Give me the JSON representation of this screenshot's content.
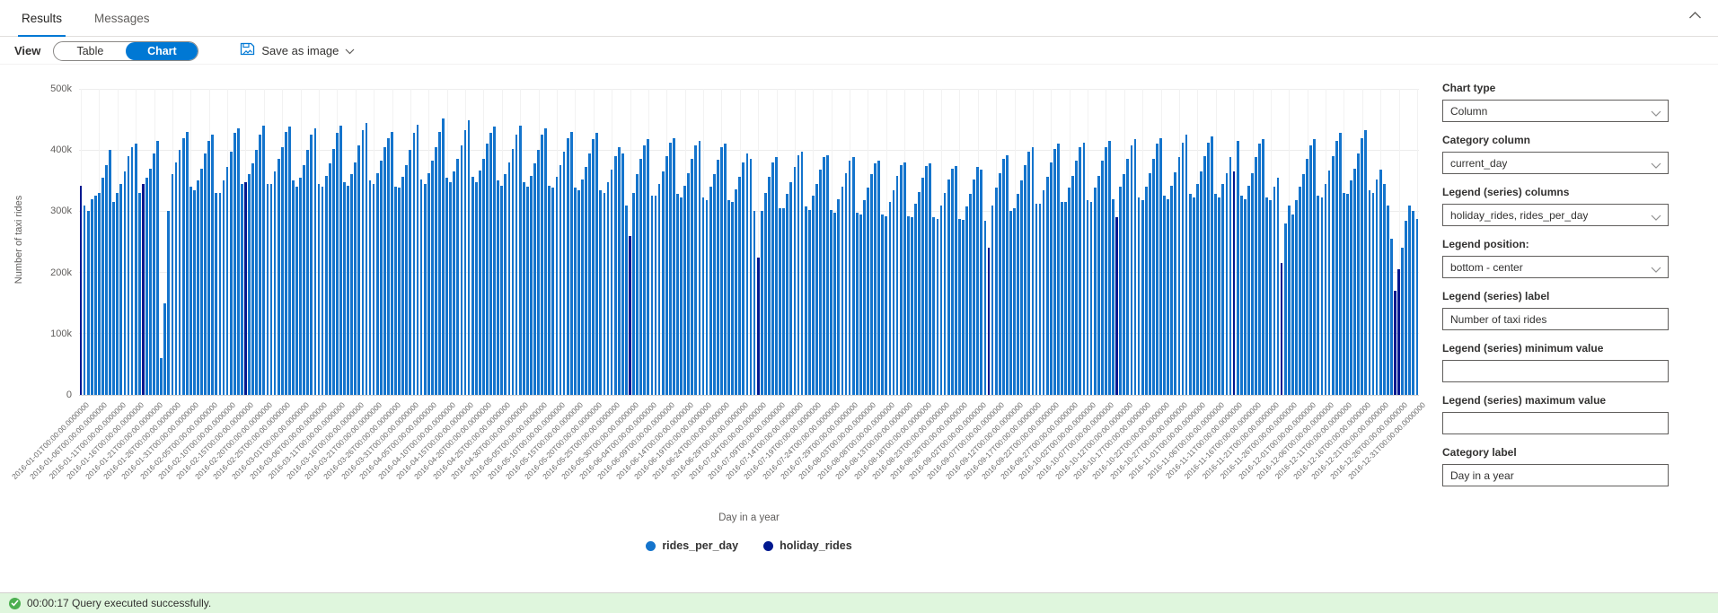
{
  "tabs": {
    "results": "Results",
    "messages": "Messages"
  },
  "toolbar": {
    "view_label": "View",
    "table_label": "Table",
    "chart_label": "Chart",
    "save_as_image_label": "Save as image"
  },
  "settings_panel": {
    "fields": [
      {
        "label": "Chart type",
        "type": "dropdown",
        "value": "Column"
      },
      {
        "label": "Category column",
        "type": "dropdown",
        "value": "current_day"
      },
      {
        "label": "Legend (series) columns",
        "type": "dropdown",
        "value": "holiday_rides, rides_per_day"
      },
      {
        "label": "Legend position:",
        "type": "dropdown",
        "value": "bottom - center"
      },
      {
        "label": "Legend (series) label",
        "type": "input",
        "value": "Number of taxi rides"
      },
      {
        "label": "Legend (series) minimum value",
        "type": "input",
        "value": ""
      },
      {
        "label": "Legend (series) maximum value",
        "type": "input",
        "value": ""
      },
      {
        "label": "Category label",
        "type": "input",
        "value": "Day in a year"
      }
    ]
  },
  "status_bar": {
    "text": "00:00:17 Query executed successfully."
  },
  "colors": {
    "accent": "#0078d4",
    "bar_blue": "#1474cc",
    "bar_navy": "#00188f"
  },
  "chart_data": {
    "type": "bar",
    "title": "",
    "xlabel": "Day in a year",
    "ylabel": "Number of taxi rides",
    "unit": "rides (thousands)",
    "ylim_k": [
      0,
      500
    ],
    "y_ticks": [
      "0",
      "100k",
      "200k",
      "300k",
      "400k",
      "500k"
    ],
    "grid": true,
    "legend_position": "bottom-center",
    "series": [
      {
        "name": "rides_per_day",
        "color": "#1474cc"
      },
      {
        "name": "holiday_rides",
        "color": "#00188f"
      }
    ],
    "x_start": "2016-01-01",
    "x_end": "2016-12-31",
    "x_tick_time_suffix": "T00:00:00.0000000",
    "x_tick_dates": [
      "2016-01-01",
      "2016-01-06",
      "2016-01-11",
      "2016-01-16",
      "2016-01-21",
      "2016-01-26",
      "2016-01-31",
      "2016-02-05",
      "2016-02-10",
      "2016-02-15",
      "2016-02-20",
      "2016-02-25",
      "2016-03-01",
      "2016-03-06",
      "2016-03-11",
      "2016-03-16",
      "2016-03-21",
      "2016-03-26",
      "2016-03-31",
      "2016-04-05",
      "2016-04-10",
      "2016-04-15",
      "2016-04-20",
      "2016-04-25",
      "2016-04-30",
      "2016-05-05",
      "2016-05-10",
      "2016-05-15",
      "2016-05-20",
      "2016-05-25",
      "2016-05-30",
      "2016-06-04",
      "2016-06-09",
      "2016-06-14",
      "2016-06-19",
      "2016-06-24",
      "2016-06-29",
      "2016-07-04",
      "2016-07-09",
      "2016-07-14",
      "2016-07-19",
      "2016-07-24",
      "2016-07-29",
      "2016-08-03",
      "2016-08-08",
      "2016-08-13",
      "2016-08-18",
      "2016-08-23",
      "2016-08-28",
      "2016-09-02",
      "2016-09-07",
      "2016-09-12",
      "2016-09-17",
      "2016-09-22",
      "2016-09-27",
      "2016-10-02",
      "2016-10-07",
      "2016-10-12",
      "2016-10-17",
      "2016-10-22",
      "2016-10-27",
      "2016-11-01",
      "2016-11-06",
      "2016-11-11",
      "2016-11-16",
      "2016-11-21",
      "2016-11-26",
      "2016-12-01",
      "2016-12-06",
      "2016-12-11",
      "2016-12-16",
      "2016-12-21",
      "2016-12-26",
      "2016-12-31"
    ],
    "holiday_indices": [
      0,
      17,
      45,
      150,
      185,
      248,
      283,
      315,
      328,
      359,
      360
    ],
    "values_k": [
      341,
      310,
      300,
      320,
      325,
      330,
      355,
      375,
      400,
      315,
      330,
      345,
      365,
      390,
      405,
      410,
      330,
      345,
      355,
      370,
      395,
      415,
      60,
      150,
      300,
      360,
      380,
      400,
      420,
      430,
      340,
      335,
      350,
      370,
      395,
      415,
      425,
      330,
      330,
      350,
      372,
      398,
      428,
      435,
      345,
      347,
      360,
      378,
      400,
      425,
      440,
      345,
      345,
      365,
      385,
      405,
      430,
      438,
      350,
      340,
      355,
      375,
      400,
      425,
      435,
      345,
      340,
      358,
      378,
      402,
      428,
      440,
      348,
      342,
      360,
      380,
      408,
      432,
      445,
      350,
      345,
      362,
      382,
      405,
      420,
      430,
      340,
      338,
      356,
      376,
      400,
      428,
      442,
      352,
      345,
      362,
      382,
      405,
      430,
      452,
      355,
      348,
      365,
      385,
      408,
      432,
      448,
      356,
      348,
      366,
      386,
      410,
      428,
      438,
      350,
      342,
      360,
      380,
      402,
      425,
      440,
      348,
      340,
      358,
      378,
      400,
      425,
      435,
      342,
      338,
      356,
      375,
      398,
      420,
      430,
      338,
      335,
      352,
      372,
      395,
      418,
      428,
      335,
      330,
      348,
      368,
      390,
      405,
      395,
      310,
      259,
      330,
      360,
      385,
      408,
      418,
      325,
      325,
      345,
      365,
      390,
      412,
      420,
      328,
      322,
      342,
      362,
      386,
      408,
      415,
      322,
      318,
      340,
      360,
      384,
      405,
      410,
      318,
      315,
      336,
      356,
      380,
      395,
      385,
      300,
      224,
      300,
      330,
      356,
      380,
      388,
      305,
      305,
      328,
      348,
      372,
      392,
      398,
      308,
      302,
      325,
      345,
      368,
      388,
      392,
      302,
      298,
      320,
      340,
      362,
      382,
      388,
      298,
      295,
      318,
      338,
      360,
      378,
      382,
      295,
      292,
      315,
      335,
      358,
      376,
      380,
      292,
      290,
      312,
      332,
      355,
      374,
      378,
      290,
      288,
      310,
      330,
      352,
      370,
      374,
      288,
      286,
      308,
      328,
      352,
      372,
      368,
      285,
      240,
      310,
      338,
      362,
      385,
      392,
      300,
      305,
      328,
      350,
      375,
      398,
      405,
      312,
      312,
      335,
      356,
      380,
      402,
      410,
      315,
      315,
      338,
      358,
      382,
      405,
      412,
      318,
      315,
      338,
      358,
      382,
      405,
      415,
      320,
      290,
      340,
      360,
      385,
      408,
      418,
      322,
      318,
      340,
      362,
      386,
      410,
      420,
      325,
      320,
      342,
      364,
      388,
      412,
      425,
      328,
      322,
      345,
      365,
      390,
      412,
      422,
      328,
      322,
      344,
      362,
      388,
      365,
      415,
      325,
      320,
      342,
      362,
      388,
      410,
      418,
      322,
      318,
      340,
      355,
      216,
      280,
      310,
      295,
      318,
      340,
      360,
      385,
      408,
      418,
      325,
      322,
      345,
      366,
      390,
      415,
      428,
      330,
      328,
      350,
      370,
      395,
      420,
      432,
      335,
      330,
      352,
      368,
      345,
      310,
      255,
      170,
      206,
      240,
      285,
      310,
      300,
      287
    ]
  }
}
